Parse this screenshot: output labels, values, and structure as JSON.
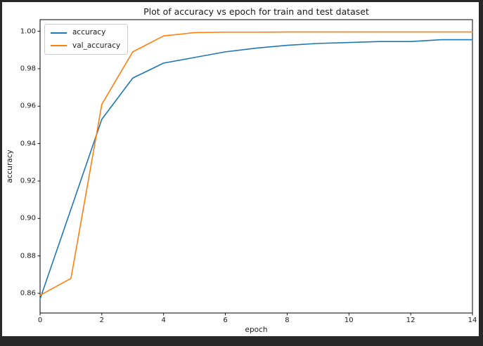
{
  "window": {
    "frame_color": "#282828",
    "canvas_color": "#ffffff"
  },
  "chart_data": {
    "type": "line",
    "title": "Plot of accuracy vs epoch for train and test dataset",
    "xlabel": "epoch",
    "ylabel": "accuracy",
    "x": [
      0,
      1,
      2,
      3,
      4,
      5,
      6,
      7,
      8,
      9,
      10,
      11,
      12,
      13,
      14
    ],
    "series": [
      {
        "name": "accuracy",
        "color": "#1f77b4",
        "values": [
          0.857,
          0.905,
          0.953,
          0.975,
          0.983,
          0.986,
          0.989,
          0.991,
          0.9925,
          0.9935,
          0.994,
          0.9945,
          0.9945,
          0.9955,
          0.9955
        ]
      },
      {
        "name": "val_accuracy",
        "color": "#ff7f0e",
        "values": [
          0.859,
          0.868,
          0.961,
          0.989,
          0.9975,
          0.9993,
          0.9995,
          0.9995,
          0.9996,
          0.9996,
          0.9996,
          0.9996,
          0.9996,
          0.9996,
          0.9996
        ]
      }
    ],
    "xlim": [
      0,
      14
    ],
    "ylim": [
      0.8495,
      1.0062
    ],
    "x_ticks": [
      0,
      2,
      4,
      6,
      8,
      10,
      12,
      14
    ],
    "y_ticks": [
      0.86,
      0.88,
      0.9,
      0.92,
      0.94,
      0.96,
      0.98,
      1.0
    ],
    "grid": false,
    "legend_position": "upper left",
    "spine_color": "#000000",
    "text_color": "#1a1a1a"
  }
}
